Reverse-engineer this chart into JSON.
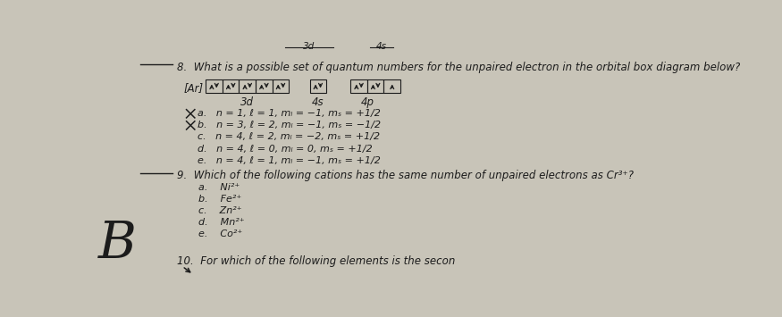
{
  "bg_color": "#c8c4b8",
  "text_color": "#1c1c1c",
  "box_color": "#1c1c1c",
  "top_label_3d": "3d",
  "top_label_4s": "4s",
  "q8_text": "8.  What is a possible set of quantum numbers for the unpaired electron in the orbital box diagram below?",
  "ar_label": "[Ar]",
  "label_3d": "3d",
  "label_4s": "4s",
  "label_4p": "4p",
  "answer_a": "n = 1, ℓ = 1, mₗ = −1, mₛ = +1/2",
  "answer_b": "n = 3, ℓ = 2, mₗ = −1, mₛ = −1/2",
  "answer_c": "n = 4, ℓ = 2, mₗ = −2, mₛ = +1/2",
  "answer_d": "n = 4, ℓ = 0, mₗ = 0, mₛ = +1/2",
  "answer_e": "n = 4, ℓ = 1, mₗ = −1, mₛ = +1/2",
  "q9_text": "9.  Which of the following cations has the same number of unpaired electrons as Cr³⁺?",
  "q9a": "a.    Ni²⁺",
  "q9b": "b.    Fe²⁺",
  "q9c": "c.    Zn²⁺",
  "q9d": "d.    Mn²⁺",
  "q9e": "e.    Co²⁺",
  "q10_text": "10.  For which of the following elements is the secon"
}
